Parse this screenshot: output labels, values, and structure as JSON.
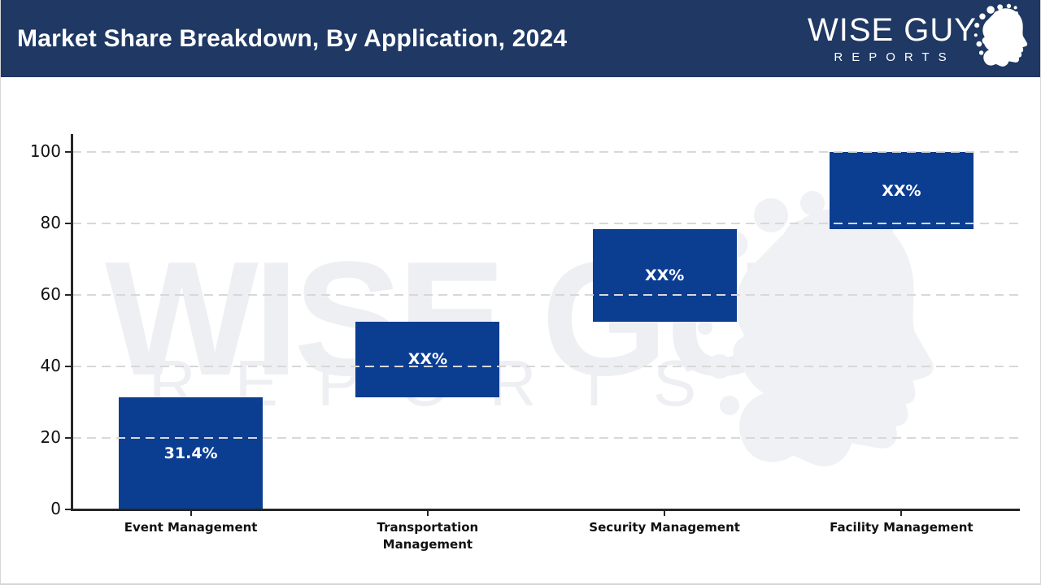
{
  "header": {
    "title": "Market Share Breakdown, By Application, 2024",
    "bg_color": "#1f3864",
    "logo": {
      "line1": "WISE GUY",
      "line2": "REPORTS"
    }
  },
  "watermark": {
    "line1": "WISE GUY",
    "line2": "REPORTS"
  },
  "chart_data": {
    "type": "bar",
    "variant": "waterfall",
    "title": "Market Share Breakdown, By Application, 2024",
    "categories": [
      "Event Management",
      "Transportation Management",
      "Security Management",
      "Facility Management"
    ],
    "segments": [
      {
        "category": "Event Management",
        "start": 0,
        "end": 31.4,
        "label": "31.4%"
      },
      {
        "category": "Transportation Management",
        "start": 31.4,
        "end": 52.5,
        "label": "XX%"
      },
      {
        "category": "Security Management",
        "start": 52.5,
        "end": 78.4,
        "label": "XX%"
      },
      {
        "category": "Facility Management",
        "start": 78.4,
        "end": 100,
        "label": "XX%"
      }
    ],
    "y_ticks": [
      0,
      20,
      40,
      60,
      80,
      100
    ],
    "ylim": [
      0,
      103.5
    ],
    "xlabel": "",
    "ylabel": "",
    "grid": {
      "horizontal": true,
      "style": "dashed"
    },
    "legend": "none",
    "bar_color": "#0b3d91",
    "value_label_color": "#ffffff",
    "axis_color": "#262626",
    "grid_color": "#d8d8d8"
  }
}
